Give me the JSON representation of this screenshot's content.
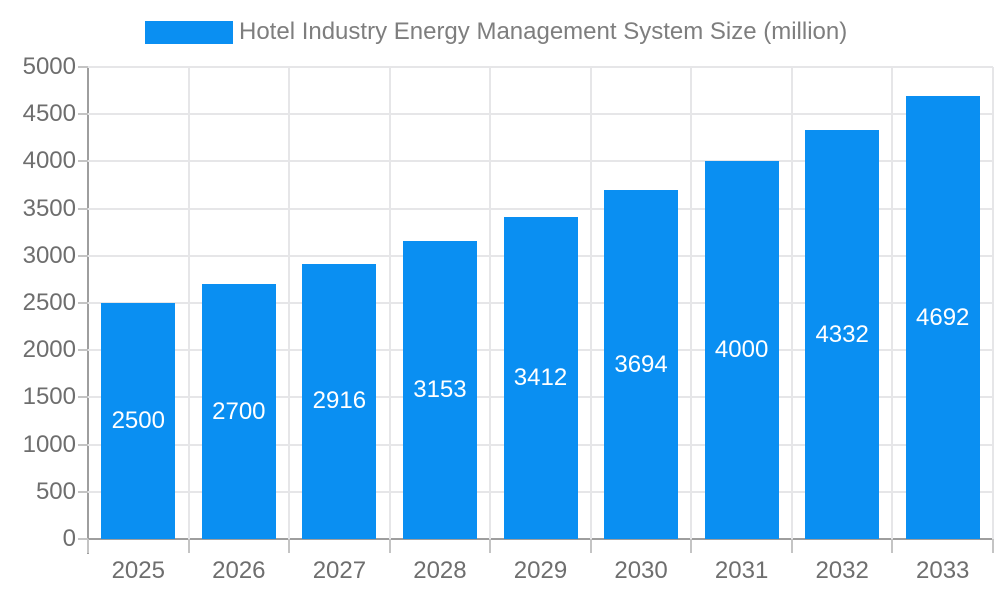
{
  "legend": {
    "entries": [
      {
        "label": "Hotel Industry Energy Management System Size (million)",
        "marker": "rect-swatch"
      }
    ],
    "position": "top"
  },
  "chart_data": {
    "type": "bar",
    "title": "Hotel Industry Energy Management System Size (million)",
    "categories": [
      "2025",
      "2026",
      "2027",
      "2028",
      "2029",
      "2030",
      "2031",
      "2032",
      "2033"
    ],
    "values": [
      2500,
      2700,
      2916,
      3153,
      3412,
      3694,
      4000,
      4332,
      4692
    ],
    "series_name": "Hotel Industry Energy Management System Size (million)",
    "xlabel": "",
    "ylabel": "",
    "ylim": [
      0,
      5000
    ],
    "ytick_step": 500,
    "yticks": [
      0,
      500,
      1000,
      1500,
      2000,
      2500,
      3000,
      3500,
      4000,
      4500,
      5000
    ],
    "grid": "both",
    "legend_position": "top",
    "value_labels": "inside-center-white"
  },
  "colors": {
    "bar": "#0A8FF2",
    "bar_label": "#FFFFFF",
    "grid": "#E6E6E8",
    "axis": "#9E9E9E",
    "tick": "#C4C4C4",
    "axis_text": "#6E6E6E",
    "title_text": "#7E7E7E",
    "background": "#FFFFFF"
  }
}
